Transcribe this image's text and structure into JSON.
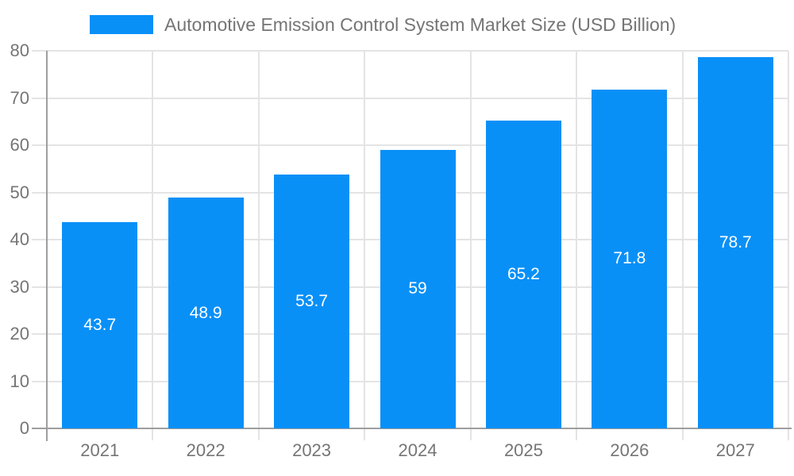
{
  "legend": {
    "swatch_color": "#0990F7",
    "label": "Automotive Emission Control System Market Size (USD Billion)"
  },
  "colors": {
    "bar": "#0990F7",
    "bar_label": "#FFFFFF",
    "axis_line": "#9E9E9E",
    "gridline": "#E4E4E4",
    "tick_label": "#757575",
    "background": "#FFFFFF"
  },
  "chart_data": {
    "type": "bar",
    "title": "Automotive Emission Control System Market Size (USD Billion)",
    "categories": [
      "2021",
      "2022",
      "2023",
      "2024",
      "2025",
      "2026",
      "2027"
    ],
    "values": [
      43.7,
      48.9,
      53.7,
      59,
      65.2,
      71.8,
      78.7
    ],
    "value_labels": [
      "43.7",
      "48.9",
      "53.7",
      "59",
      "65.2",
      "71.8",
      "78.7"
    ],
    "series": [
      {
        "name": "Automotive Emission Control System Market Size (USD Billion)",
        "values": [
          43.7,
          48.9,
          53.7,
          59,
          65.2,
          71.8,
          78.7
        ]
      }
    ],
    "xlabel": "",
    "ylabel": "",
    "ylim": [
      0,
      80
    ],
    "ytick_step": 10,
    "yticks": [
      0,
      10,
      20,
      30,
      40,
      50,
      60,
      70,
      80
    ],
    "grid": true,
    "legend_position": "top",
    "data_label_position": "inside-center"
  }
}
